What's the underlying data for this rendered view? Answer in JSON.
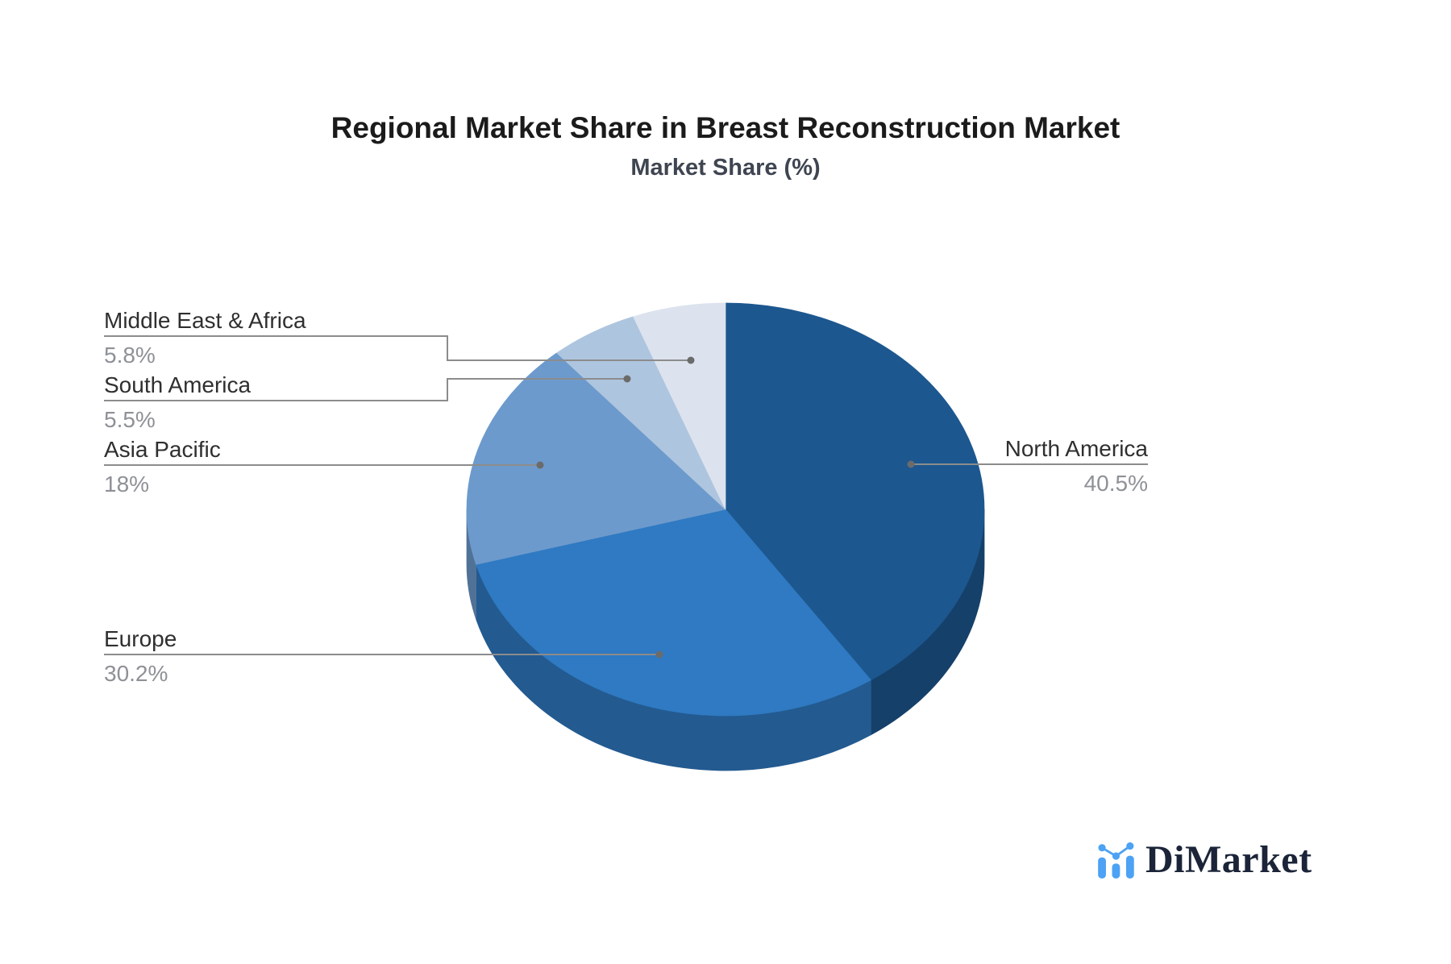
{
  "header": {
    "title": "Regional Market Share in Breast Reconstruction Market",
    "subtitle": "Market Share (%)"
  },
  "chart_data": {
    "type": "pie",
    "style": "3d",
    "title": "Regional Market Share in Breast Reconstruction Market",
    "subtitle": "Market Share (%)",
    "unit": "percent",
    "start_angle_deg": 0,
    "direction": "clockwise",
    "legend": false,
    "labels": "outside with leader lines",
    "series": [
      {
        "name": "North America",
        "value": 40.5,
        "display": "40.5%",
        "color": "#1D578F"
      },
      {
        "name": "Europe",
        "value": 30.2,
        "display": "30.2%",
        "color": "#2F7AC2"
      },
      {
        "name": "Asia Pacific",
        "value": 18,
        "display": "18%",
        "color": "#6D9ACC"
      },
      {
        "name": "South America",
        "value": 5.5,
        "display": "5.5%",
        "color": "#AEC5DF"
      },
      {
        "name": "Middle East & Africa",
        "value": 5.8,
        "display": "5.8%",
        "color": "#DCE3EE"
      }
    ]
  },
  "logo": {
    "text": "DiMarket",
    "icon": "bar-chart-trend-icon",
    "icon_color": "#4CA2F4"
  },
  "colors": {
    "background": "#FFFFFF",
    "title": "#1B1B1B",
    "subtitle": "#3F4551",
    "label_name": "#2F2F2F",
    "label_value": "#8E9196",
    "connector": "#8C8C8C",
    "dot": "#6B6B6B",
    "logo_text": "#1B2438"
  }
}
